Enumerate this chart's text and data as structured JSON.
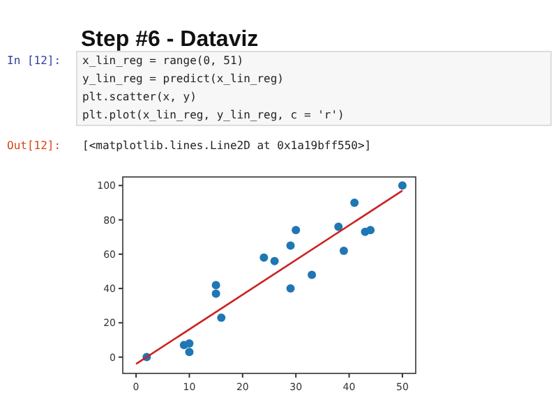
{
  "chart_data": {
    "type": "scatter",
    "title": "Step #6 - Dataviz",
    "annotations": [
      "In [12]:",
      "x_lin_reg = range(0, 51)",
      "y_lin_reg = predict(x_lin_reg)",
      "plt.scatter(x, y)",
      "plt.plot(x_lin_reg, y_lin_reg, c = 'r')",
      "Out[12]:",
      "[<matplotlib.lines.Line2D at 0x1a19bff550>]"
    ],
    "series": [
      {
        "color": "#1f77b4",
        "marker": "circle",
        "x": [
          2,
          9,
          10,
          10,
          15,
          15,
          16,
          24,
          26,
          29,
          29,
          30,
          33,
          38,
          39,
          41,
          43,
          44,
          50
        ],
        "values": [
          0,
          7,
          8,
          3,
          42,
          37,
          23,
          58,
          56,
          65,
          40,
          74,
          48,
          76,
          62,
          90,
          73,
          74,
          100
        ]
      },
      {
        "type": "line",
        "marker": "none",
        "color": "#cc2222",
        "x": [
          0,
          50
        ],
        "values": [
          -4,
          97
        ]
      }
    ],
    "xlim": [
      -2.5,
      52.5
    ],
    "ylim": [
      -9.5,
      105
    ],
    "xticks": [
      0,
      10,
      20,
      30,
      40,
      50
    ],
    "yticks": [
      0,
      20,
      40,
      60,
      80,
      100
    ],
    "grid": false
  }
}
